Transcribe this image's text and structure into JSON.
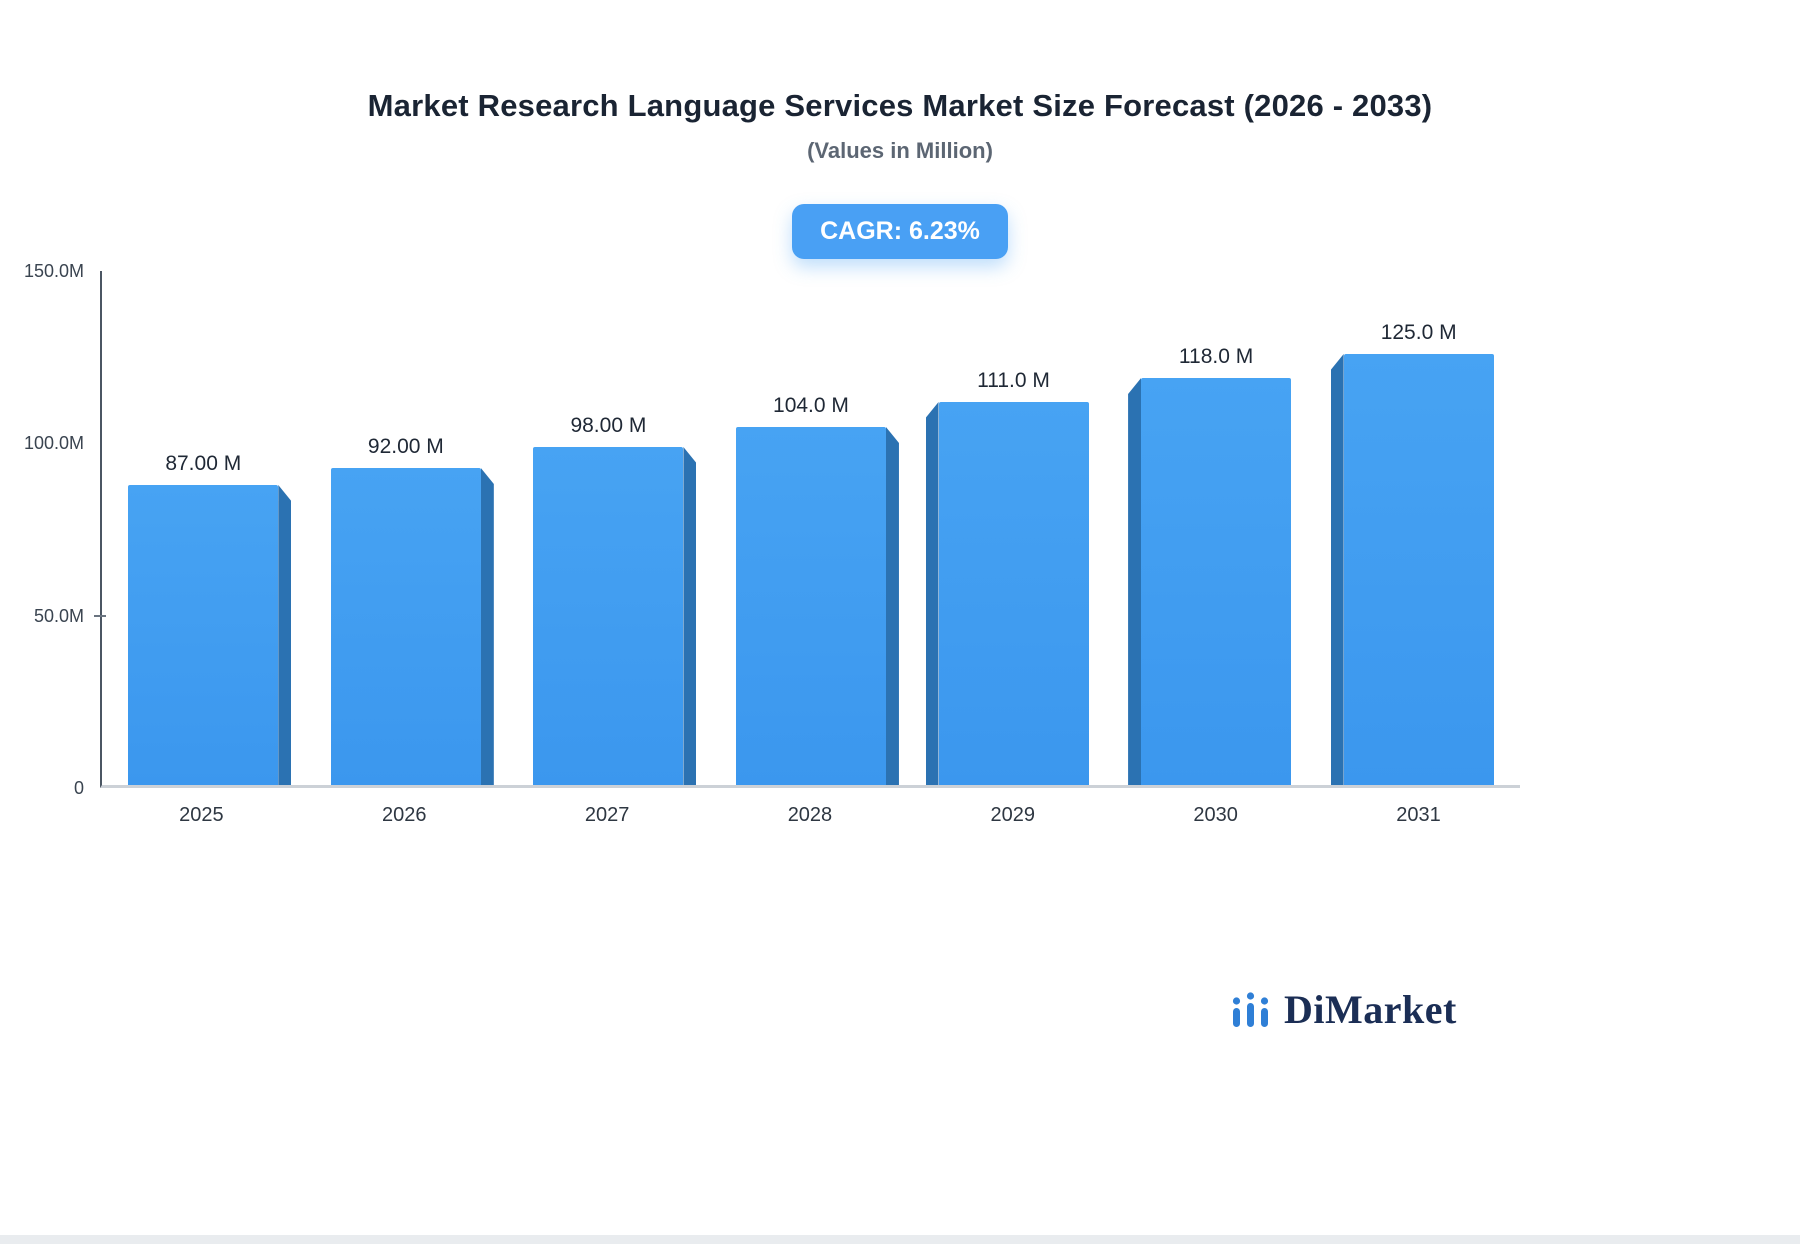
{
  "header": {
    "title": "Market Research Language Services Market Size Forecast (2026 - 2033)",
    "subtitle": "(Values in Million)",
    "cagr_badge": "CAGR: 6.23%"
  },
  "brand": {
    "name": "DiMarket",
    "icon": "bar-chart-logo-icon",
    "icon_color": "#2f7fd6",
    "text_color": "#1b2e55"
  },
  "chart_data": {
    "type": "bar",
    "title": "Market Research Language Services Market Size Forecast (2026 - 2033)",
    "subtitle": "(Values in Million)",
    "categories": [
      "2025",
      "2026",
      "2027",
      "2028",
      "2029",
      "2030",
      "2031"
    ],
    "values": [
      87,
      92,
      98,
      104,
      111,
      118,
      125
    ],
    "value_labels": [
      "87.00 M",
      "92.00 M",
      "98.00 M",
      "104.0 M",
      "111.0 M",
      "118.0 M",
      "125.0 M"
    ],
    "xlabel": "",
    "ylabel": "",
    "ylim": [
      0,
      150
    ],
    "yticks": [
      {
        "label": "150.0M",
        "value": 150,
        "tick": false
      },
      {
        "label": "100.0M",
        "value": 100,
        "tick": false
      },
      {
        "label": "50.0M",
        "value": 50,
        "tick": true
      },
      {
        "label": "0",
        "value": 0,
        "tick": false
      }
    ],
    "grid": false,
    "legend": "none",
    "colors": {
      "bar": "#3d9bf0",
      "bar_side": "#2b72b2",
      "badge": "#49a0f4",
      "axis": "#4b5663",
      "baseline": "#ccd1d7"
    }
  }
}
